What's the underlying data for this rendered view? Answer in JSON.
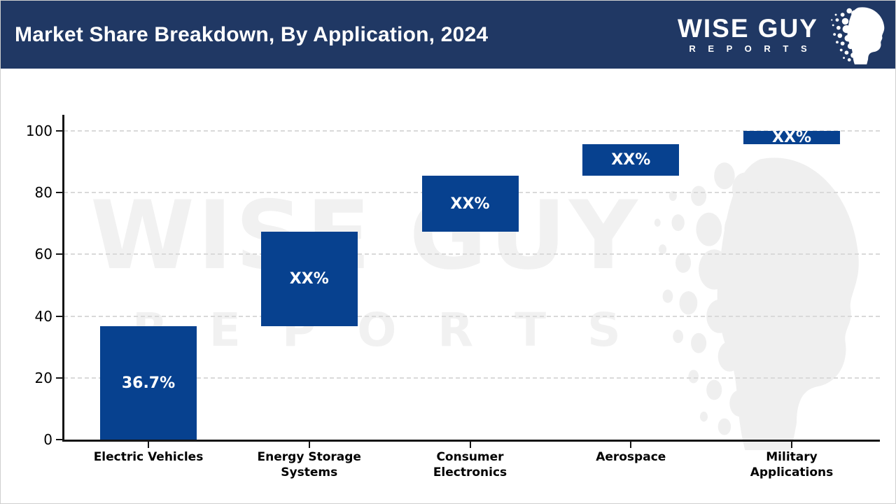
{
  "header": {
    "title": "Market Share Breakdown, By Application, 2024",
    "logo": {
      "line1": "WISE GUY",
      "line2": "R E P O R T S"
    }
  },
  "watermark": {
    "line1": "WISE GUY",
    "line2": "R E P O R T S"
  },
  "colors": {
    "header_bg": "#203864",
    "bar_blue": "#07418f",
    "grid": "#d9d9d9",
    "axis": "#151515",
    "watermark": "#f1f1f1"
  },
  "chart_data": {
    "type": "bar",
    "subtype": "waterfall-market-share",
    "title": "Market Share Breakdown, By Application, 2024",
    "xlabel": "",
    "ylabel": "",
    "ylim": [
      0,
      105
    ],
    "yticks": [
      0,
      20,
      40,
      60,
      80,
      100
    ],
    "grid": "horizontal-dashed",
    "legend": "none",
    "bar_color": "#07418f",
    "categories": [
      "Electric Vehicles",
      "Energy Storage\nSystems",
      "Consumer\nElectronics",
      "Aerospace",
      "Military\nApplications"
    ],
    "segments": [
      {
        "category": "Electric Vehicles",
        "start": 0,
        "end": 36.7,
        "label": "36.7%"
      },
      {
        "category": "Energy Storage\nSystems",
        "start": 36.7,
        "end": 67.3,
        "label": "XX%"
      },
      {
        "category": "Consumer\nElectronics",
        "start": 67.3,
        "end": 85.5,
        "label": "XX%"
      },
      {
        "category": "Aerospace",
        "start": 85.5,
        "end": 95.8,
        "label": "XX%"
      },
      {
        "category": "Military\nApplications",
        "start": 95.8,
        "end": 100,
        "label": "XX%"
      }
    ]
  }
}
